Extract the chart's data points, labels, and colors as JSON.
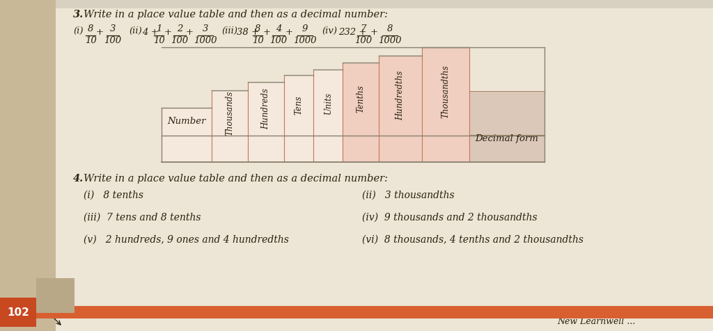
{
  "page_bg": "#e8e0d0",
  "page_bg_right": "#f0ebe0",
  "title3": "3.  Write in a place value table and then as a decimal number:",
  "table_headers": [
    "Number",
    "Thousands",
    "Hundreds",
    "Tens",
    "Units",
    "Tenths",
    "Hundredths",
    "Thousandths",
    "Decimal form"
  ],
  "col_fill_left": "#f5e8dc",
  "col_fill_right": "#f0cfc0",
  "col_fill_decimal": "#dcc8b8",
  "title4": "4.  Write in a place value table and then as a decimal number:",
  "items_left": [
    "(i)  8 tenths",
    "(iii)  7 tens and 8 tenths",
    "(v)  2 hundreds, 9 ones and 4 hundredths"
  ],
  "items_right": [
    "(ii)  3 thousandths",
    "(iv)  9 thousands and 2 thousandths",
    "(vi)  8 thousands, 4 tenths and 2 thousandths"
  ],
  "footer": "New Learnwell ...",
  "page_num": "102",
  "text_color": "#2a2010",
  "line_color": "#c08060",
  "border_color": "#888070"
}
